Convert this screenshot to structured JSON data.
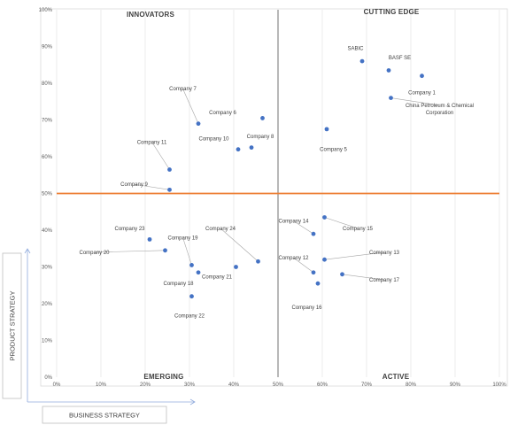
{
  "colors": {
    "point": "#4472C4",
    "midline_horizontal": "#ED7D31",
    "midline_vertical": "#A6A6A6",
    "grid": "#E7E7E7",
    "axis_arrow": "#8FAADC",
    "leader": "#A6A6A6"
  },
  "chart_data": {
    "type": "scatter",
    "xlabel": "BUSINESS STRATEGY",
    "ylabel": "PRODUCT STRATEGY",
    "xlim": [
      0,
      100
    ],
    "ylim": [
      0,
      100
    ],
    "x_ticks": [
      "0%",
      "10%",
      "20%",
      "30%",
      "40%",
      "50%",
      "60%",
      "70%",
      "80%",
      "90%",
      "100%"
    ],
    "y_ticks": [
      "0%",
      "10%",
      "20%",
      "30%",
      "40%",
      "50%",
      "60%",
      "70%",
      "80%",
      "90%",
      "100%"
    ],
    "x_midline": 50,
    "y_midline": 50,
    "grid": "vertical",
    "quadrants": {
      "top_left": "INNOVATORS",
      "top_right": "CUTTING EDGE",
      "bottom_left": "EMERGING",
      "bottom_right": "ACTIVE"
    },
    "points": [
      {
        "label": "SABIC",
        "x": 69,
        "y": 86,
        "lx": 67.5,
        "ly": 89.5
      },
      {
        "label": "BASF SE",
        "x": 75,
        "y": 83.5,
        "lx": 77.5,
        "ly": 87
      },
      {
        "label": "Company 1",
        "x": 82.5,
        "y": 82,
        "lx": 82.5,
        "ly": 77.5
      },
      {
        "label": "China Petroleum & Chemical",
        "label2": "Corporation",
        "x": 75.5,
        "y": 76,
        "lx": 86.5,
        "ly": 74,
        "leader": true
      },
      {
        "label": "Company 7",
        "x": 32,
        "y": 69,
        "lx": 28.5,
        "ly": 78.5,
        "leader": true
      },
      {
        "label": "Company 6",
        "x": 46.5,
        "y": 70.5,
        "lx": 37.5,
        "ly": 72
      },
      {
        "label": "Company 5",
        "x": 61,
        "y": 67.5,
        "lx": 62.5,
        "ly": 62
      },
      {
        "label": "Company 10",
        "x": 41,
        "y": 62,
        "lx": 35.5,
        "ly": 65
      },
      {
        "label": "Company 8",
        "x": 44,
        "y": 62.5,
        "lx": 46,
        "ly": 65.5
      },
      {
        "label": "Company 11",
        "x": 25.5,
        "y": 56.5,
        "lx": 21.5,
        "ly": 64,
        "leader": true
      },
      {
        "label": "Company 9",
        "x": 25.5,
        "y": 51,
        "lx": 17.5,
        "ly": 52.5,
        "leader": true
      },
      {
        "label": "Company 24",
        "x": 45.5,
        "y": 31.5,
        "lx": 37,
        "ly": 40.5,
        "leader": true
      },
      {
        "label": "Company 23",
        "x": 21,
        "y": 37.5,
        "lx": 16.5,
        "ly": 40.5
      },
      {
        "label": "Company 19",
        "x": 30.5,
        "y": 30.5,
        "lx": 28.5,
        "ly": 38,
        "leader": true
      },
      {
        "label": "Company 20",
        "x": 24.5,
        "y": 34.5,
        "lx": 8.5,
        "ly": 34,
        "leader": true
      },
      {
        "label": "Company 18",
        "x": 32,
        "y": 28.5,
        "lx": 27.5,
        "ly": 25.5
      },
      {
        "label": "Company 21",
        "x": 40.5,
        "y": 30,
        "lx": 36.2,
        "ly": 27.3
      },
      {
        "label": "Company 22",
        "x": 30.5,
        "y": 22,
        "lx": 30,
        "ly": 16.8
      },
      {
        "label": "Company 14",
        "x": 58,
        "y": 39,
        "lx": 53.5,
        "ly": 42.5,
        "leader": true
      },
      {
        "label": "Company 15",
        "x": 60.5,
        "y": 43.5,
        "lx": 68,
        "ly": 40.5,
        "leader": true
      },
      {
        "label": "Company 12",
        "x": 58,
        "y": 28.5,
        "lx": 53.5,
        "ly": 32.5,
        "leader": true
      },
      {
        "label": "Company 13",
        "x": 60.5,
        "y": 32,
        "lx": 74,
        "ly": 34,
        "leader": true
      },
      {
        "label": "Company 17",
        "x": 64.5,
        "y": 28,
        "lx": 74,
        "ly": 26.5,
        "leader": true
      },
      {
        "label": "Company 16",
        "x": 59,
        "y": 25.5,
        "lx": 56.5,
        "ly": 19
      }
    ]
  }
}
